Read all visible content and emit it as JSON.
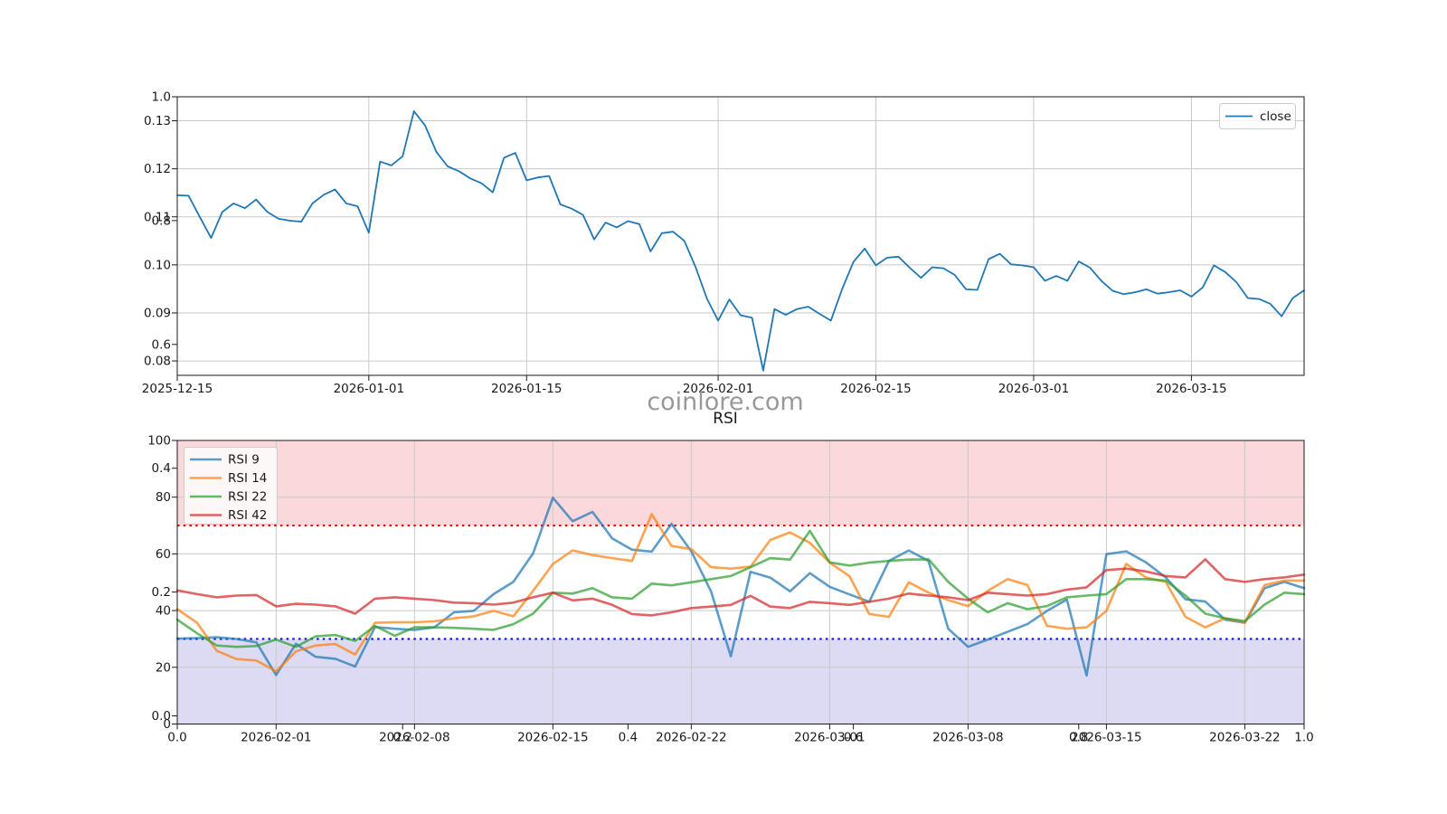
{
  "watermark": {
    "text": "coinlore.com",
    "color": "#999999"
  },
  "overlay_axis": {
    "x_tick_labels": [
      "0.0",
      "0.2",
      "0.4",
      "0.6",
      "0.8",
      "1.0"
    ],
    "y_tick_labels": [
      "1.0",
      "0.8",
      "0.6",
      "0.4",
      "0.2",
      "0.0"
    ]
  },
  "style": {
    "grid_color": "#c9c9c9",
    "axis_color": "#1a1a1a",
    "tick_font_px": 13.5,
    "legend_border": "#cccccc",
    "legend_fill": "rgba(255,255,255,0.8)"
  },
  "chart_data": [
    {
      "type": "line",
      "panel": "price",
      "title": "",
      "grid": true,
      "legend_position": "upper right",
      "start_date": "2025-12-15",
      "end_date": "2026-03-25",
      "freq": "daily",
      "ylim": [
        0.077,
        0.135
      ],
      "y_ticks": [
        "0.13",
        "0.12",
        "0.11",
        "0.10",
        "0.09",
        "0.08"
      ],
      "x_ticks": [
        "2025-12-15",
        "2026-01-01",
        "2026-01-15",
        "2026-02-01",
        "2026-02-15",
        "2026-03-01",
        "2026-03-15"
      ],
      "series": [
        {
          "name": "close",
          "color": "#1f77b4",
          "values": [
            0.1145,
            0.1144,
            0.11,
            0.1056,
            0.111,
            0.1128,
            0.1118,
            0.1136,
            0.111,
            0.1096,
            0.1092,
            0.109,
            0.1128,
            0.1146,
            0.1157,
            0.1128,
            0.1122,
            0.1067,
            0.1215,
            0.1207,
            0.1226,
            0.132,
            0.129,
            0.1235,
            0.1205,
            0.1195,
            0.118,
            0.117,
            0.1151,
            0.1223,
            0.1233,
            0.1176,
            0.1182,
            0.1185,
            0.1126,
            0.1117,
            0.1104,
            0.1053,
            0.1088,
            0.1078,
            0.1091,
            0.1085,
            0.1028,
            0.1066,
            0.1069,
            0.105,
            0.0995,
            0.093,
            0.0884,
            0.0928,
            0.0895,
            0.089,
            0.078,
            0.0908,
            0.0896,
            0.0908,
            0.0913,
            0.0898,
            0.0884,
            0.0949,
            0.1006,
            0.1034,
            0.0999,
            0.1015,
            0.1017,
            0.0994,
            0.0973,
            0.0995,
            0.0993,
            0.0979,
            0.0949,
            0.0948,
            0.1012,
            0.1023,
            0.1001,
            0.0999,
            0.0995,
            0.0967,
            0.0977,
            0.0967,
            0.1007,
            0.0994,
            0.0967,
            0.0946,
            0.0939,
            0.0943,
            0.0949,
            0.094,
            0.0943,
            0.0947,
            0.0934,
            0.0953,
            0.0999,
            0.0985,
            0.0964,
            0.0931,
            0.0929,
            0.0919,
            0.0893,
            0.0931,
            0.0947
          ]
        }
      ]
    },
    {
      "type": "line",
      "panel": "rsi",
      "title": "RSI",
      "grid": true,
      "legend_position": "upper left",
      "start_date": "2026-01-27",
      "end_date": "2026-03-25",
      "freq": "daily",
      "ylim": [
        0,
        100
      ],
      "y_ticks": [
        "100",
        "80",
        "60",
        "40",
        "20",
        "0"
      ],
      "x_ticks": [
        "2026-02-01",
        "2026-02-08",
        "2026-02-15",
        "2026-02-22",
        "2026-03-01",
        "2026-03-08",
        "2026-03-15",
        "2026-03-22"
      ],
      "overbought": 70,
      "oversold": 30,
      "overbought_fill": "#fbd8db",
      "oversold_fill": "#dcdbf3",
      "overbought_line_color": "#f00000",
      "oversold_line_color": "#0b0bf0",
      "line_opacity": 0.72,
      "series": [
        {
          "name": "RSI 9",
          "color": "#1f77b4",
          "values": [
            30.1,
            30.3,
            30.6,
            30.0,
            28.8,
            17.3,
            28.3,
            23.7,
            23.0,
            20.3,
            34.2,
            33.6,
            33.2,
            34.1,
            39.4,
            39.9,
            45.8,
            50.1,
            60.2,
            79.8,
            71.5,
            74.8,
            65.5,
            61.5,
            60.8,
            70.6,
            60.9,
            46.8,
            23.9,
            53.7,
            51.6,
            46.8,
            53.2,
            48.4,
            45.7,
            43.1,
            57.5,
            61.2,
            57.5,
            33.6,
            27.2,
            29.8,
            32.5,
            35.2,
            39.9,
            43.9,
            17.1,
            59.9,
            60.9,
            57.0,
            51.7,
            44.0,
            43.2,
            36.8,
            35.7,
            47.9,
            50.1,
            47.9
          ]
        },
        {
          "name": "RSI 14",
          "color": "#ff7f0e",
          "values": [
            40.5,
            35.7,
            25.8,
            22.9,
            22.4,
            18.6,
            25.6,
            27.7,
            28.2,
            24.5,
            35.7,
            35.9,
            35.9,
            36.2,
            37.3,
            38.0,
            39.9,
            38.0,
            47.0,
            56.4,
            61.2,
            59.6,
            58.5,
            57.5,
            74.0,
            62.8,
            61.7,
            55.3,
            54.8,
            55.5,
            64.9,
            67.6,
            63.9,
            56.9,
            52.2,
            38.8,
            37.8,
            50.0,
            46.3,
            43.7,
            41.6,
            47.0,
            51.1,
            49.0,
            34.6,
            33.6,
            34.1,
            39.9,
            56.5,
            51.7,
            50.1,
            37.8,
            34.1,
            37.3,
            35.7,
            49.0,
            50.6,
            50.6
          ]
        },
        {
          "name": "RSI 22",
          "color": "#2ca02c",
          "values": [
            36.8,
            32.0,
            27.7,
            27.2,
            27.5,
            29.8,
            27.2,
            30.9,
            31.4,
            29.3,
            34.6,
            31.1,
            34.1,
            34.1,
            33.9,
            33.6,
            33.2,
            35.2,
            38.9,
            46.3,
            46.0,
            47.9,
            44.7,
            44.2,
            49.5,
            48.9,
            50.0,
            51.1,
            52.2,
            55.3,
            58.5,
            58.0,
            68.1,
            57.0,
            55.9,
            56.9,
            57.5,
            58.0,
            58.1,
            50.1,
            44.2,
            39.4,
            42.6,
            40.5,
            41.6,
            44.7,
            45.3,
            45.8,
            51.1,
            51.1,
            50.6,
            45.3,
            38.9,
            37.3,
            36.3,
            42.1,
            46.3,
            45.8
          ]
        },
        {
          "name": "RSI 42",
          "color": "#d62728",
          "values": [
            47.1,
            45.8,
            44.7,
            45.3,
            45.5,
            41.5,
            42.4,
            42.1,
            41.5,
            38.9,
            44.2,
            44.7,
            44.2,
            43.7,
            42.8,
            42.6,
            42.1,
            42.8,
            44.7,
            46.3,
            43.6,
            44.2,
            42.0,
            38.8,
            38.3,
            39.4,
            40.9,
            41.4,
            42.0,
            45.2,
            41.4,
            40.9,
            43.1,
            42.6,
            42.0,
            43.1,
            44.2,
            46.0,
            45.3,
            44.7,
            43.7,
            46.3,
            45.8,
            45.3,
            45.8,
            47.4,
            48.2,
            54.3,
            54.8,
            53.8,
            52.2,
            51.7,
            58.1,
            51.1,
            50.1,
            51.1,
            51.7,
            52.7
          ]
        }
      ]
    }
  ]
}
